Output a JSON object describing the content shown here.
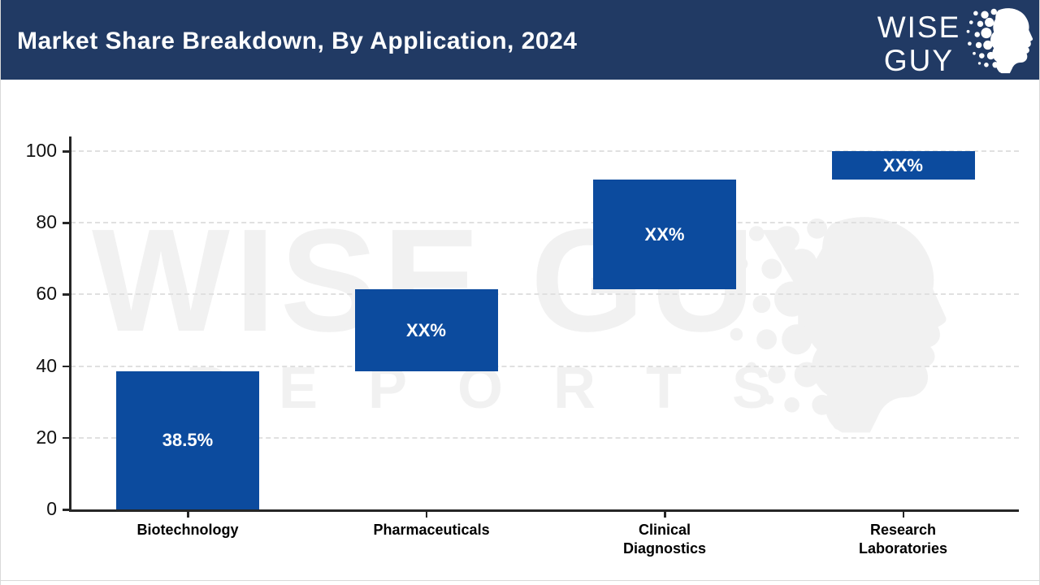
{
  "header": {
    "bg_color": "#213a64",
    "title": "Market Share Breakdown, By Application, 2024",
    "logo": {
      "name": "WISE GUY",
      "sub": "REPORTS"
    }
  },
  "watermark": {
    "name": "WISE GUY",
    "sub": "REPORTS"
  },
  "chart_data": {
    "type": "bar",
    "variant": "waterfall",
    "title": "Market Share Breakdown, By Application, 2024",
    "categories": [
      "Biotechnology",
      "Pharmaceuticals",
      "Clinical Diagnostics",
      "Research Laboratories"
    ],
    "series": [
      {
        "name": "Market share (%)",
        "segments": [
          {
            "category": "Biotechnology",
            "start": 0,
            "end": 38.5,
            "label": "38.5%"
          },
          {
            "category": "Pharmaceuticals",
            "start": 38.5,
            "end": 61.5,
            "label": "XX%"
          },
          {
            "category": "Clinical Diagnostics",
            "start": 61.5,
            "end": 92,
            "label": "XX%"
          },
          {
            "category": "Research Laboratories",
            "start": 92,
            "end": 100,
            "label": "XX%"
          }
        ]
      }
    ],
    "y_ticks": [
      0,
      20,
      40,
      60,
      80,
      100
    ],
    "ylim": [
      0,
      104
    ],
    "xlabel": "",
    "ylabel": "",
    "grid": {
      "horizontal": true,
      "style": "dashed",
      "color": "#e0e0e0"
    },
    "legend": "none",
    "bar_color": "#0c4b9e",
    "bar_label_color": "#ffffff",
    "axis_color": "#262626",
    "tick_label_color": "#111111"
  }
}
